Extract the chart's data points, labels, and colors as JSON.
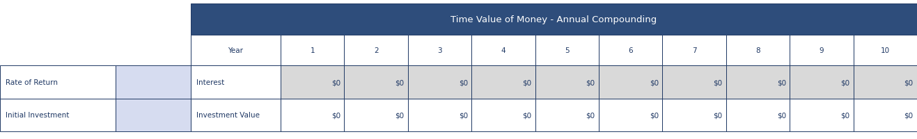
{
  "title": "Time Value of Money - Annual Compounding",
  "title_bg_color": "#2E4D7B",
  "title_text_color": "#FFFFFF",
  "left_labels": [
    "Rate of Return",
    "Initial Investment"
  ],
  "left_label_text_color": "#1F3864",
  "left_box_fill": "#D6DCF0",
  "col_header": "Year",
  "col_header_text_color": "#1F3864",
  "year_cols": [
    "1",
    "2",
    "3",
    "4",
    "5",
    "6",
    "7",
    "8",
    "9",
    "10"
  ],
  "year_col_text_color": "#1F3864",
  "row_labels": [
    "Interest",
    "Investment Value"
  ],
  "row_label_text_color": "#1F3864",
  "data_values": [
    [
      "$0",
      "$0",
      "$0",
      "$0",
      "$0",
      "$0",
      "$0",
      "$0",
      "$0",
      "$0"
    ],
    [
      "$0",
      "$0",
      "$0",
      "$0",
      "$0",
      "$0",
      "$0",
      "$0",
      "$0",
      "$0"
    ]
  ],
  "row_cell_bg": [
    "#D9D9D9",
    "#FFFFFF"
  ],
  "data_text_color": "#1F3864",
  "border_color": "#1F3864",
  "font_size": 7.5,
  "fig_bg_color": "#FFFFFF"
}
